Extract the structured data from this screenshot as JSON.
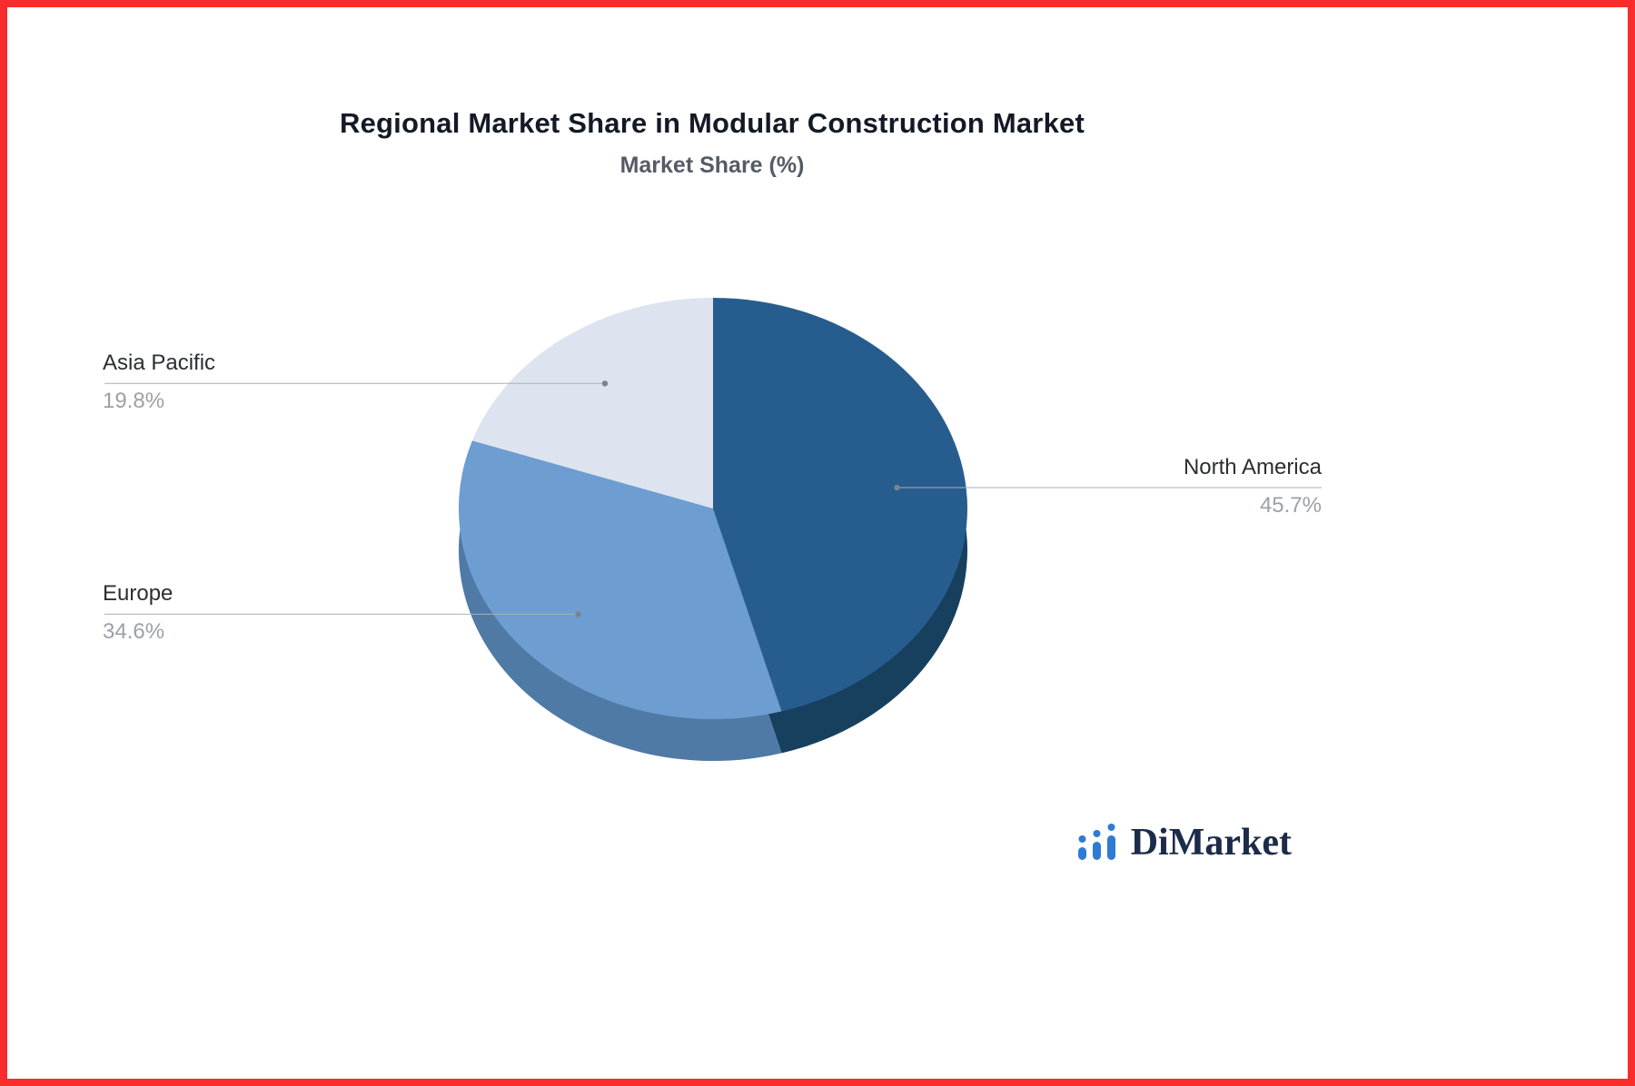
{
  "frame": {
    "border_color": "#f92c2c"
  },
  "header": {
    "title": "Regional Market Share in Modular Construction Market",
    "subtitle": "Market Share (%)"
  },
  "chart_data": {
    "type": "pie",
    "title": "Regional Market Share in Modular Construction Market",
    "subtitle": "Market Share (%)",
    "unit": "%",
    "start_angle_deg": 0,
    "direction": "clockwise",
    "legend_position": "callouts",
    "effect_3d": true,
    "slices": [
      {
        "label": "North America",
        "value": 45.7,
        "display": "45.7%",
        "color": "#275d8e",
        "depth_color": "#17405f"
      },
      {
        "label": "Europe",
        "value": 34.6,
        "display": "34.6%",
        "color": "#6d9dd1",
        "depth_color": "#4f7aa6"
      },
      {
        "label": "Asia Pacific",
        "value": 19.8,
        "display": "19.8%",
        "color": "#dde4ef",
        "depth_color": "#b7c2d4"
      }
    ]
  },
  "branding": {
    "logo_text": "DiMarket",
    "logo_icon": "bar-chart-icon",
    "logo_text_color": "#1c2b4a",
    "logo_icon_color": "#2e7bd3"
  }
}
